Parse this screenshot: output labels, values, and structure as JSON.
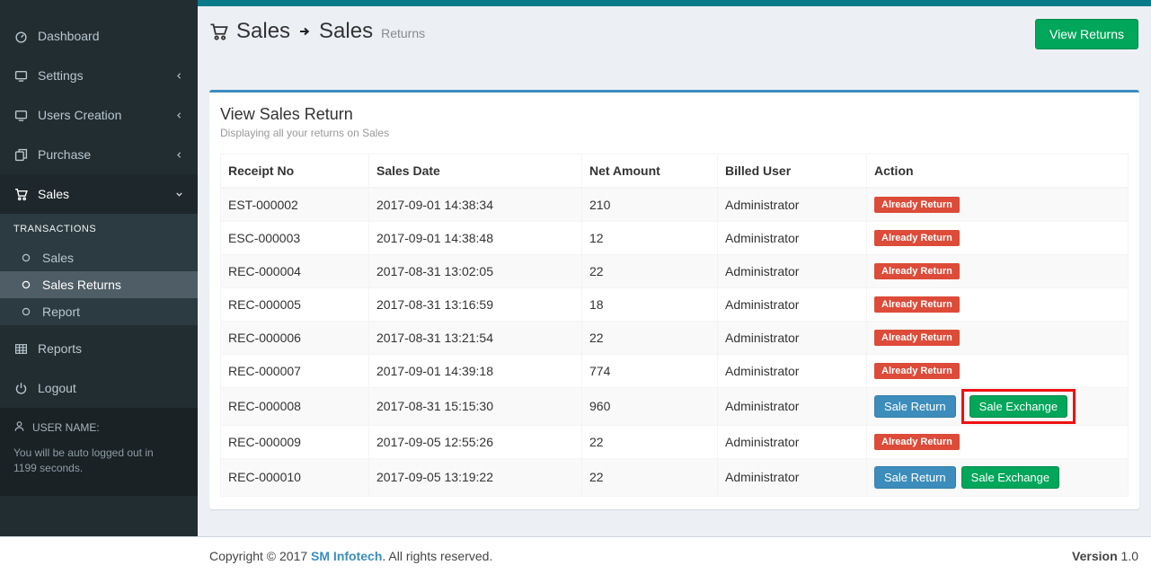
{
  "sidebar": {
    "items": [
      {
        "label": "Dashboard"
      },
      {
        "label": "Settings"
      },
      {
        "label": "Users Creation"
      },
      {
        "label": "Purchase"
      },
      {
        "label": "Sales"
      }
    ],
    "transactions_header": "TRANSACTIONS",
    "transactions_items": [
      {
        "label": "Sales"
      },
      {
        "label": "Sales Returns"
      },
      {
        "label": "Report"
      }
    ],
    "reports_label": "Reports",
    "logout_label": "Logout",
    "user_label": "USER NAME:",
    "auto_logout_notice": "You will be auto logged out in 1199 seconds."
  },
  "header": {
    "section": "Sales",
    "page": "Sales",
    "page_sub": "Returns",
    "view_returns_button": "View Returns"
  },
  "box": {
    "title": "View Sales Return",
    "subtitle": "Displaying all your returns on Sales"
  },
  "table": {
    "columns": [
      "Receipt No",
      "Sales Date",
      "Net Amount",
      "Billed User",
      "Action"
    ],
    "rows": [
      {
        "receipt_no": "EST-000002",
        "sales_date": "2017-09-01 14:38:34",
        "net_amount": "210",
        "billed_user": "Administrator",
        "action": "already_return"
      },
      {
        "receipt_no": "ESC-000003",
        "sales_date": "2017-09-01 14:38:48",
        "net_amount": "12",
        "billed_user": "Administrator",
        "action": "already_return"
      },
      {
        "receipt_no": "REC-000004",
        "sales_date": "2017-08-31 13:02:05",
        "net_amount": "22",
        "billed_user": "Administrator",
        "action": "already_return"
      },
      {
        "receipt_no": "REC-000005",
        "sales_date": "2017-08-31 13:16:59",
        "net_amount": "18",
        "billed_user": "Administrator",
        "action": "already_return"
      },
      {
        "receipt_no": "REC-000006",
        "sales_date": "2017-08-31 13:21:54",
        "net_amount": "22",
        "billed_user": "Administrator",
        "action": "already_return"
      },
      {
        "receipt_no": "REC-000007",
        "sales_date": "2017-09-01 14:39:18",
        "net_amount": "774",
        "billed_user": "Administrator",
        "action": "already_return"
      },
      {
        "receipt_no": "REC-000008",
        "sales_date": "2017-08-31 15:15:30",
        "net_amount": "960",
        "billed_user": "Administrator",
        "action": "return_exchange",
        "highlight_exchange": true
      },
      {
        "receipt_no": "REC-000009",
        "sales_date": "2017-09-05 12:55:26",
        "net_amount": "22",
        "billed_user": "Administrator",
        "action": "already_return"
      },
      {
        "receipt_no": "REC-000010",
        "sales_date": "2017-09-05 13:19:22",
        "net_amount": "22",
        "billed_user": "Administrator",
        "action": "return_exchange",
        "highlight_exchange": false
      }
    ]
  },
  "labels": {
    "already_return": "Already Return",
    "sale_return": "Sale Return",
    "sale_exchange": "Sale Exchange"
  },
  "footer": {
    "copyright_prefix": "Copyright © 2017 ",
    "company": "SM Infotech",
    "copyright_suffix": ". All rights reserved.",
    "version_label": "Version",
    "version_number": "1.0"
  },
  "colors": {
    "accent_green": "#00a65a",
    "accent_blue": "#3c8dbc",
    "badge_red": "#dd4b39",
    "highlight_red": "#ee1111",
    "sidebar_bg": "#222d32",
    "topstrip_teal": "#0b7a88",
    "content_bg": "#ecf0f5"
  }
}
